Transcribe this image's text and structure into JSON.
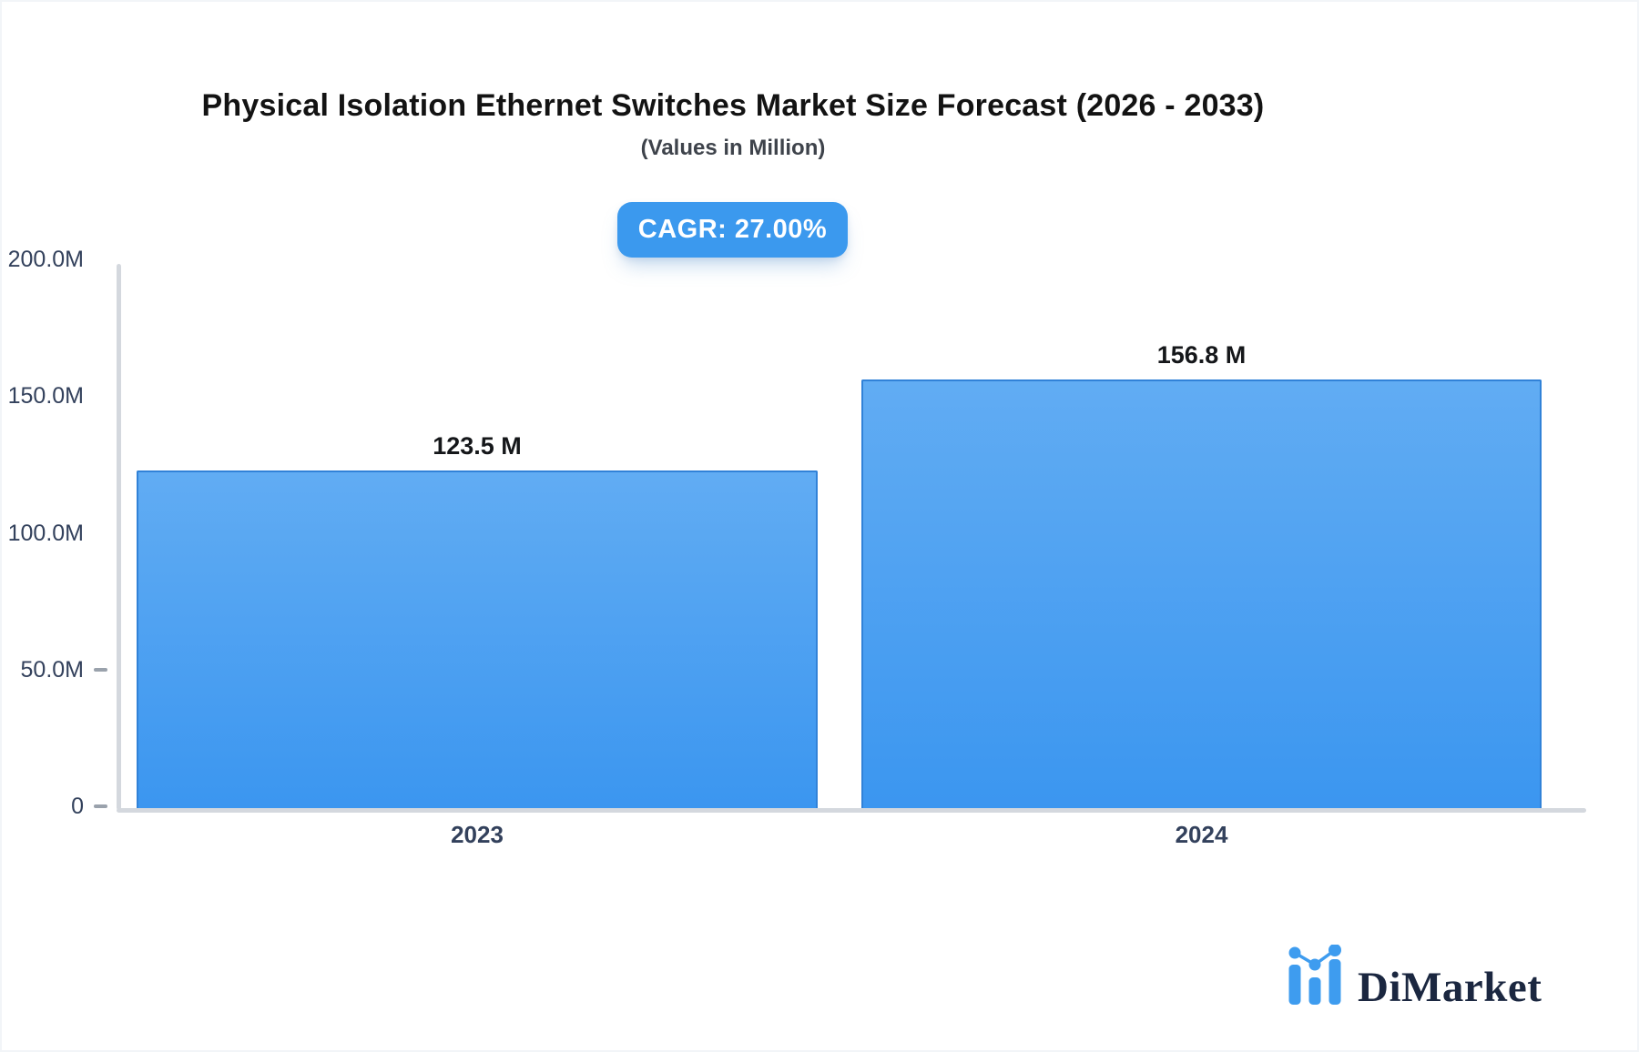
{
  "chart_data": {
    "type": "bar",
    "title": "Physical Isolation Ethernet Switches Market Size Forecast (2026 - 2033)",
    "subtitle": "(Values in Million)",
    "badge": "CAGR: 27.00%",
    "categories": [
      "2023",
      "2024"
    ],
    "values": [
      123.5,
      156.8
    ],
    "value_labels": [
      "123.5 M",
      "156.8 M"
    ],
    "unit": "M",
    "xlabel": "",
    "ylabel": "",
    "ylim": [
      0,
      200
    ],
    "grid": false,
    "legend": "none",
    "y_axis": {
      "ticks": [
        {
          "label": "200.0M",
          "value": 200,
          "dash": false
        },
        {
          "label": "150.0M",
          "value": 150,
          "dash": false
        },
        {
          "label": "100.0M",
          "value": 100,
          "dash": false
        },
        {
          "label": "50.0M",
          "value": 50,
          "dash": true
        },
        {
          "label": "0",
          "value": 0,
          "dash": true
        }
      ]
    }
  },
  "branding": {
    "wordmark": "DiMarket",
    "logo_icon": "bar-chart-with-trend-dots-icon"
  },
  "colors": {
    "accent": "#3b99ee",
    "title": "#131313",
    "subtitle": "#3e434b",
    "axis": "#d4d8de",
    "tick": "#9aa2ac",
    "axistext": "#33415c",
    "value": "#15171a",
    "barTop": "#61acf3",
    "barBottom": "#3b96f0",
    "barBorder": "#3182d8",
    "navy": "#1b2740",
    "logoBlue": "#3e9cef"
  }
}
